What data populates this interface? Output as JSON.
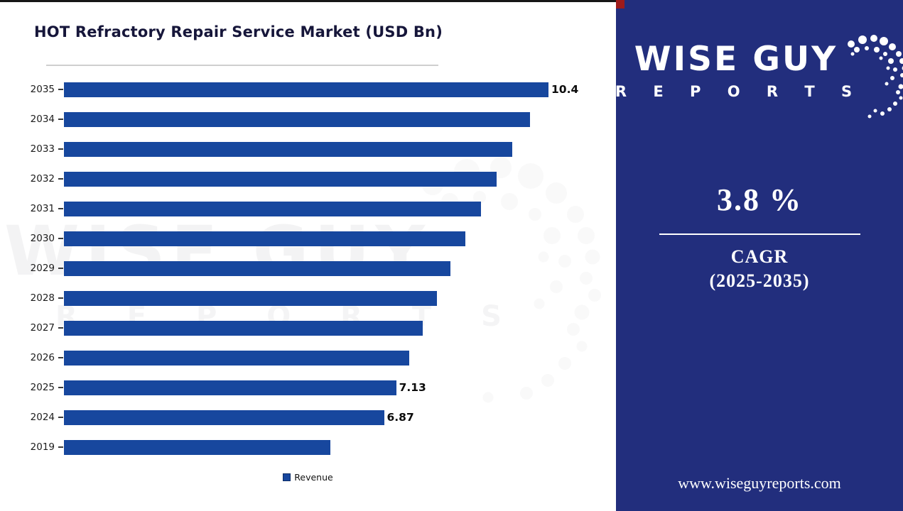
{
  "chart_data": {
    "type": "bar",
    "orientation": "horizontal",
    "title": "HOT Refractory Repair Service Market (USD Bn)",
    "categories": [
      "2035",
      "2034",
      "2033",
      "2032",
      "2031",
      "2030",
      "2029",
      "2028",
      "2027",
      "2026",
      "2025",
      "2024",
      "2019"
    ],
    "values": [
      10.4,
      10.0,
      9.62,
      9.28,
      8.95,
      8.62,
      8.3,
      8.0,
      7.7,
      7.41,
      7.13,
      6.87,
      5.72
    ],
    "value_labels": [
      "10.4",
      "",
      "",
      "",
      "",
      "",
      "",
      "",
      "",
      "",
      "7.13",
      "6.87",
      ""
    ],
    "xlim": [
      0,
      10.4
    ],
    "bar_color": "#17479E",
    "grid": false,
    "legend": {
      "label": "Revenue",
      "position": "bottom-center",
      "swatch_color": "#17479E"
    }
  },
  "watermark": {
    "line1": "WISE GUY",
    "line2": "R E P O R T S"
  },
  "right_panel": {
    "bg_color": "#222E7D",
    "accent_color": "#9e1b1b",
    "brand": {
      "line1": "WISE GUY",
      "line2": "R E P O R T S"
    },
    "cagr": {
      "value": "3.8 %",
      "label": "CAGR",
      "range": "(2025-2035)"
    },
    "website": "www.wiseguyreports.com"
  }
}
